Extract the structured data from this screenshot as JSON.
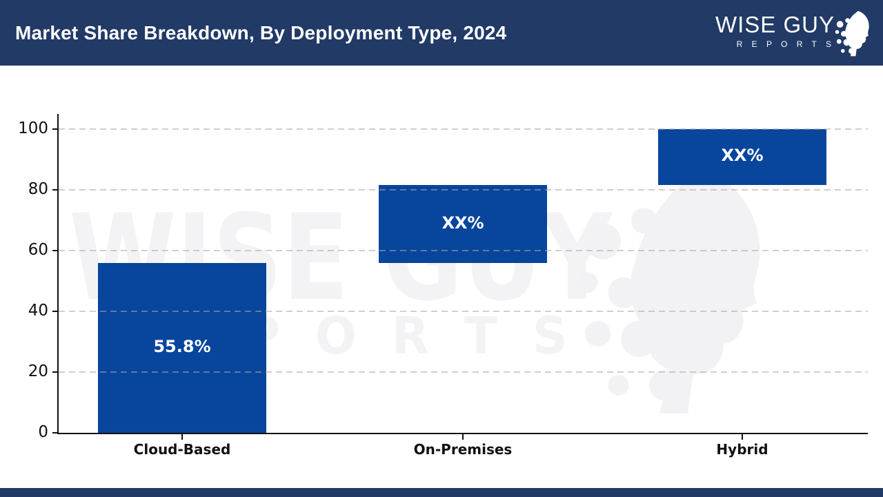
{
  "header": {
    "title": "Market Share Breakdown, By Deployment Type, 2024",
    "logo_line1": "WISE GUY",
    "logo_line2": "R E P O R T S"
  },
  "watermark": {
    "line1": "WISE GUY",
    "line2": "R E P O R T S"
  },
  "chart_data": {
    "type": "bar",
    "variant": "stacked-waterfall",
    "title": "Market Share Breakdown, By Deployment Type, 2024",
    "categories": [
      "Cloud-Based",
      "On-Premises",
      "Hybrid"
    ],
    "segments": [
      {
        "category": "Cloud-Based",
        "start": 0,
        "end": 55.8,
        "label": "55.8%"
      },
      {
        "category": "On-Premises",
        "start": 55.8,
        "end": 81.6,
        "label": "XX%"
      },
      {
        "category": "Hybrid",
        "start": 81.6,
        "end": 100,
        "label": "XX%"
      }
    ],
    "yticks": [
      0,
      20,
      40,
      60,
      80,
      100
    ],
    "ylim": [
      0,
      105
    ],
    "xlabel": "",
    "ylabel": "",
    "grid": "dashed-horizontal",
    "legend": "none",
    "colors": {
      "bar": "#08459D",
      "header_bg": "#213A66",
      "grid": "#DCDCDC",
      "axis": "#111111",
      "bar_label_text": "#FFFFFF",
      "watermark": "#F3F3F6"
    }
  }
}
